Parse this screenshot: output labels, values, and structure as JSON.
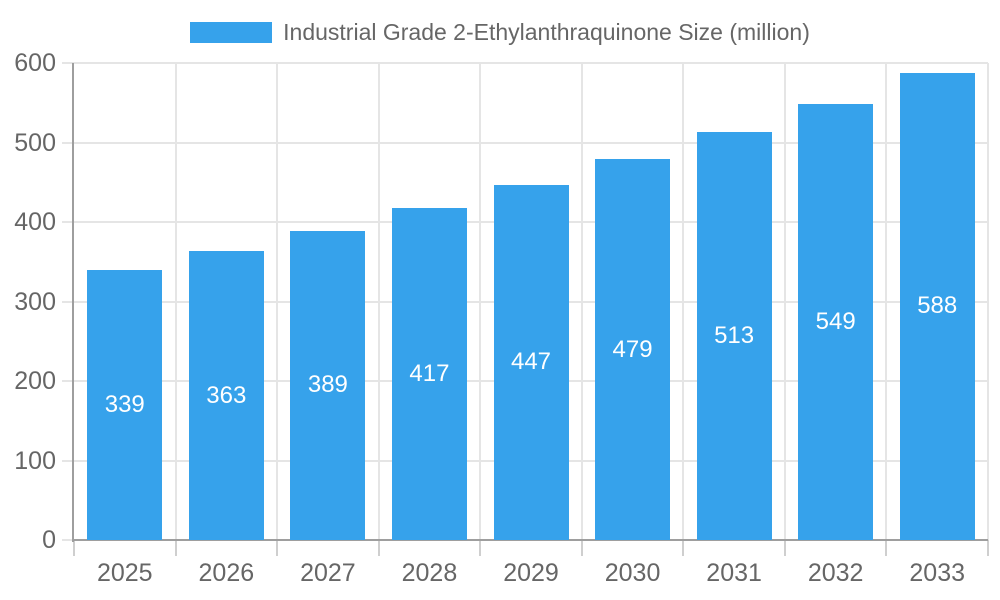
{
  "chart_data": {
    "type": "bar",
    "title": "",
    "legend": "Industrial Grade 2-Ethylanthraquinone Size (million)",
    "legend_position": "top",
    "categories": [
      "2025",
      "2026",
      "2027",
      "2028",
      "2029",
      "2030",
      "2031",
      "2032",
      "2033"
    ],
    "values": [
      339,
      363,
      389,
      417,
      447,
      479,
      513,
      549,
      588
    ],
    "xlabel": "",
    "ylabel": "",
    "ylim": [
      0,
      600
    ],
    "ytick_interval": 100,
    "yticks": [
      0,
      100,
      200,
      300,
      400,
      500,
      600
    ],
    "grid": true,
    "value_labels": "inside-center",
    "colors": {
      "bar": "#36A2EB",
      "bar_value_text": "#FFFFFF",
      "axis_text": "#666666",
      "grid_line": "#E5E5E5",
      "axis_line": "#9E9E9E",
      "tick_mark": "#CFCFCF",
      "background": "#FFFFFF"
    }
  }
}
